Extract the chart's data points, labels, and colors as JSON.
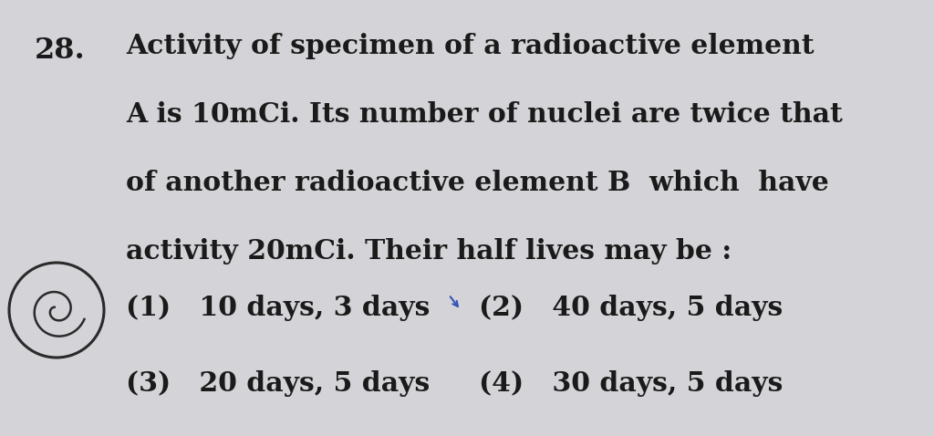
{
  "background_color": "#d4d4d8",
  "question_number": "28.",
  "question_text_line1": "Activity of specimen of a radioactive element",
  "question_text_line2": "A is 10mCi. Its number of nuclei are twice that",
  "question_text_line3": "of another radioactive element B  which  have",
  "question_text_line4": "activity 20mCi. Their half lives may be :",
  "option1": "(1)   10 days, 3 days",
  "option2": "(2)   40 days, 5 days",
  "option3": "(3)   20 days, 5 days",
  "option4": "(4)   30 days, 5 days",
  "text_color": "#1a1a1a",
  "font_size_question": 21.5,
  "font_size_number": 23,
  "font_size_options": 21.5,
  "font_family": "DejaVu Serif"
}
